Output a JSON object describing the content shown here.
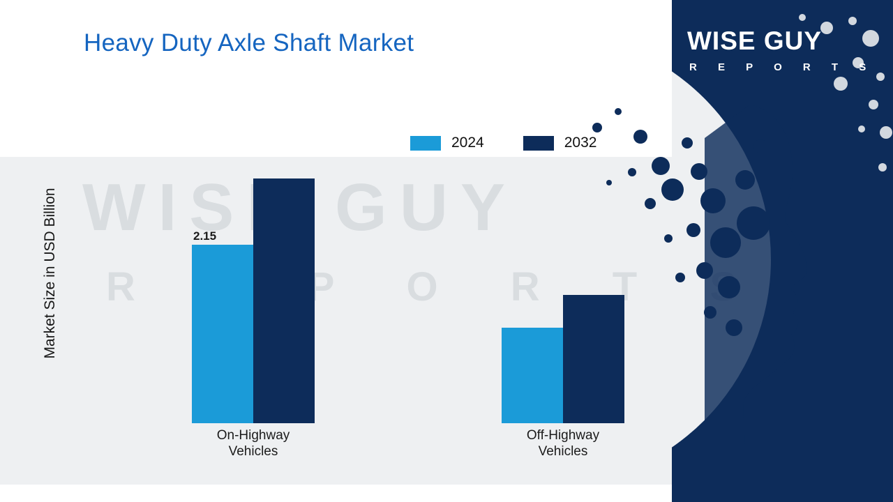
{
  "header": {
    "title": "Heavy Duty Axle Shaft Market"
  },
  "brand": {
    "line1": "WISE GUY",
    "line2": "R E P O R T S"
  },
  "watermark": {
    "line1": "WISE GUY",
    "line2": "R E P O R T S"
  },
  "chart_data": {
    "type": "bar",
    "title": "Heavy Duty Axle Shaft Market",
    "ylabel": "Market Size in USD Billion",
    "categories": [
      "On-Highway\nVehicles",
      "Off-Highway\nVehicles"
    ],
    "series": [
      {
        "name": "2024",
        "color": "#1b9bd8",
        "values": [
          2.15,
          1.15
        ]
      },
      {
        "name": "2032",
        "color": "#0d2c5a",
        "values": [
          2.95,
          1.55
        ]
      }
    ],
    "data_labels": [
      {
        "series": "2024",
        "category": "On-Highway Vehicles",
        "text": "2.15"
      }
    ],
    "ylim": [
      0,
      3.2
    ],
    "grid": false,
    "legend_position": "top"
  },
  "colors": {
    "accent_blue": "#1b9bd8",
    "navy": "#0d2c5a",
    "title_blue": "#1565c0",
    "canvas_gray": "#eef0f2",
    "watermark_gray": "#d3d7db"
  }
}
